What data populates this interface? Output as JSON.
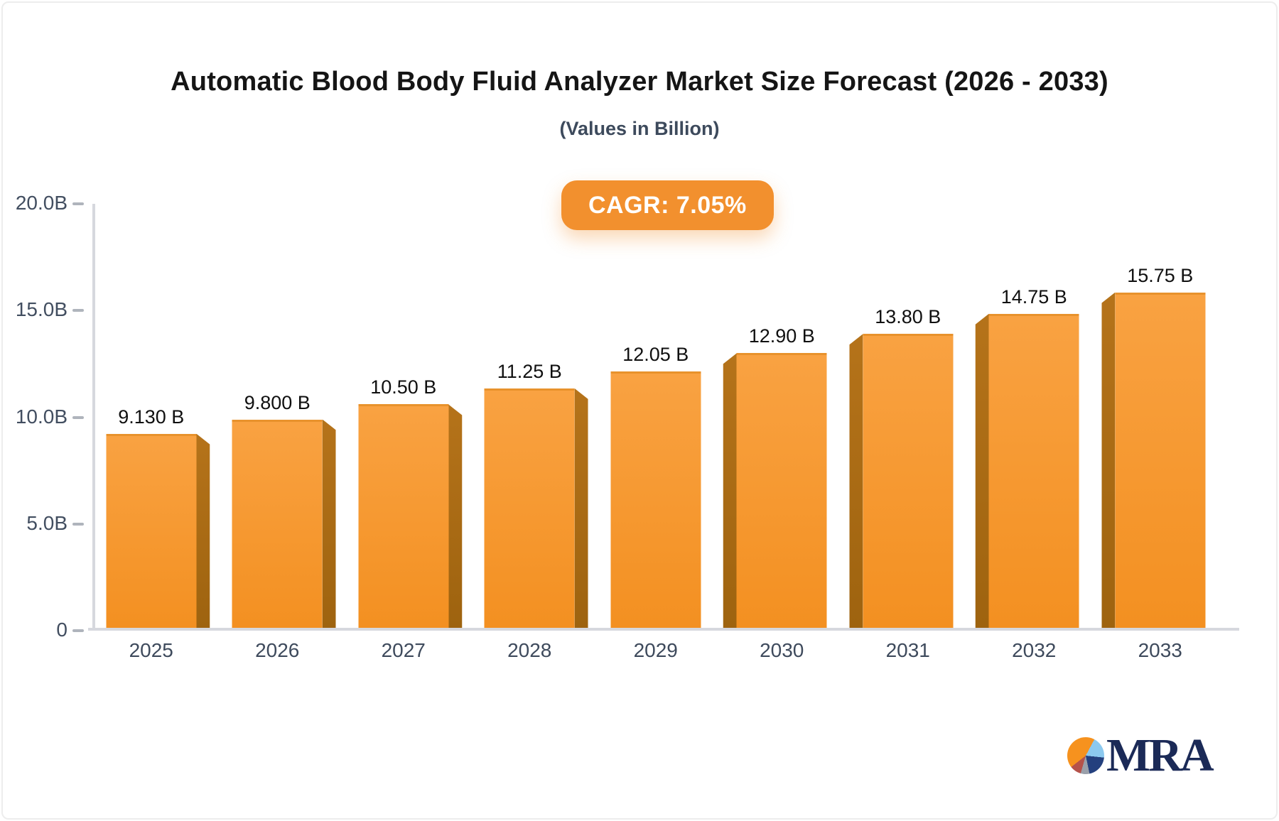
{
  "chart_data": {
    "type": "bar",
    "title": "Automatic Blood Body Fluid Analyzer Market Size Forecast (2026 - 2033)",
    "subtitle": "(Values in Billion)",
    "categories": [
      "2025",
      "2026",
      "2027",
      "2028",
      "2029",
      "2030",
      "2031",
      "2032",
      "2033"
    ],
    "values": [
      9.13,
      9.8,
      10.5,
      11.25,
      12.05,
      12.9,
      13.8,
      14.75,
      15.75
    ],
    "bar_labels": [
      "9.130 B",
      "9.800 B",
      "10.50 B",
      "11.25 B",
      "12.05 B",
      "12.90 B",
      "13.80 B",
      "14.75 B",
      "15.75 B"
    ],
    "xlabel": "",
    "ylabel": "",
    "ylim": [
      0,
      20
    ],
    "y_ticks": [
      {
        "label": "20.0B",
        "value": 20
      },
      {
        "label": "15.0B",
        "value": 15
      },
      {
        "label": "10.0B",
        "value": 10
      },
      {
        "label": "5.0B",
        "value": 5
      },
      {
        "label": "0",
        "value": 0
      }
    ],
    "grid": false,
    "legend": false,
    "bar_style": "3d-extruded, vanishing point at center: side face on right for 2025-2028, none for 2029, on left for 2030-2033"
  },
  "badge": {
    "label": "CAGR: 7.05%"
  },
  "logo": {
    "text": "MRA",
    "icon": "pie-chart-icon"
  },
  "colors": {
    "bar_face_top": "#f9a242",
    "bar_face_bottom": "#f39021",
    "bar_top_edge": "#e8922c",
    "bar_side": "#aa6a14",
    "badge_background": "#f2902e",
    "badge_text": "#ffffff",
    "axis_line": "#d6d8de",
    "tick_mark": "#afb4bc",
    "axis_label": "#3e4a5c",
    "value_label": "#101010",
    "title_text": "#151515",
    "subtitle_text": "#3d4a5c",
    "logo_navy": "#1b2a57",
    "logo_orange": "#f6921e",
    "logo_lightblue": "#8cc9ef",
    "logo_gray": "#9aa0aa",
    "logo_red": "#b5524a"
  }
}
